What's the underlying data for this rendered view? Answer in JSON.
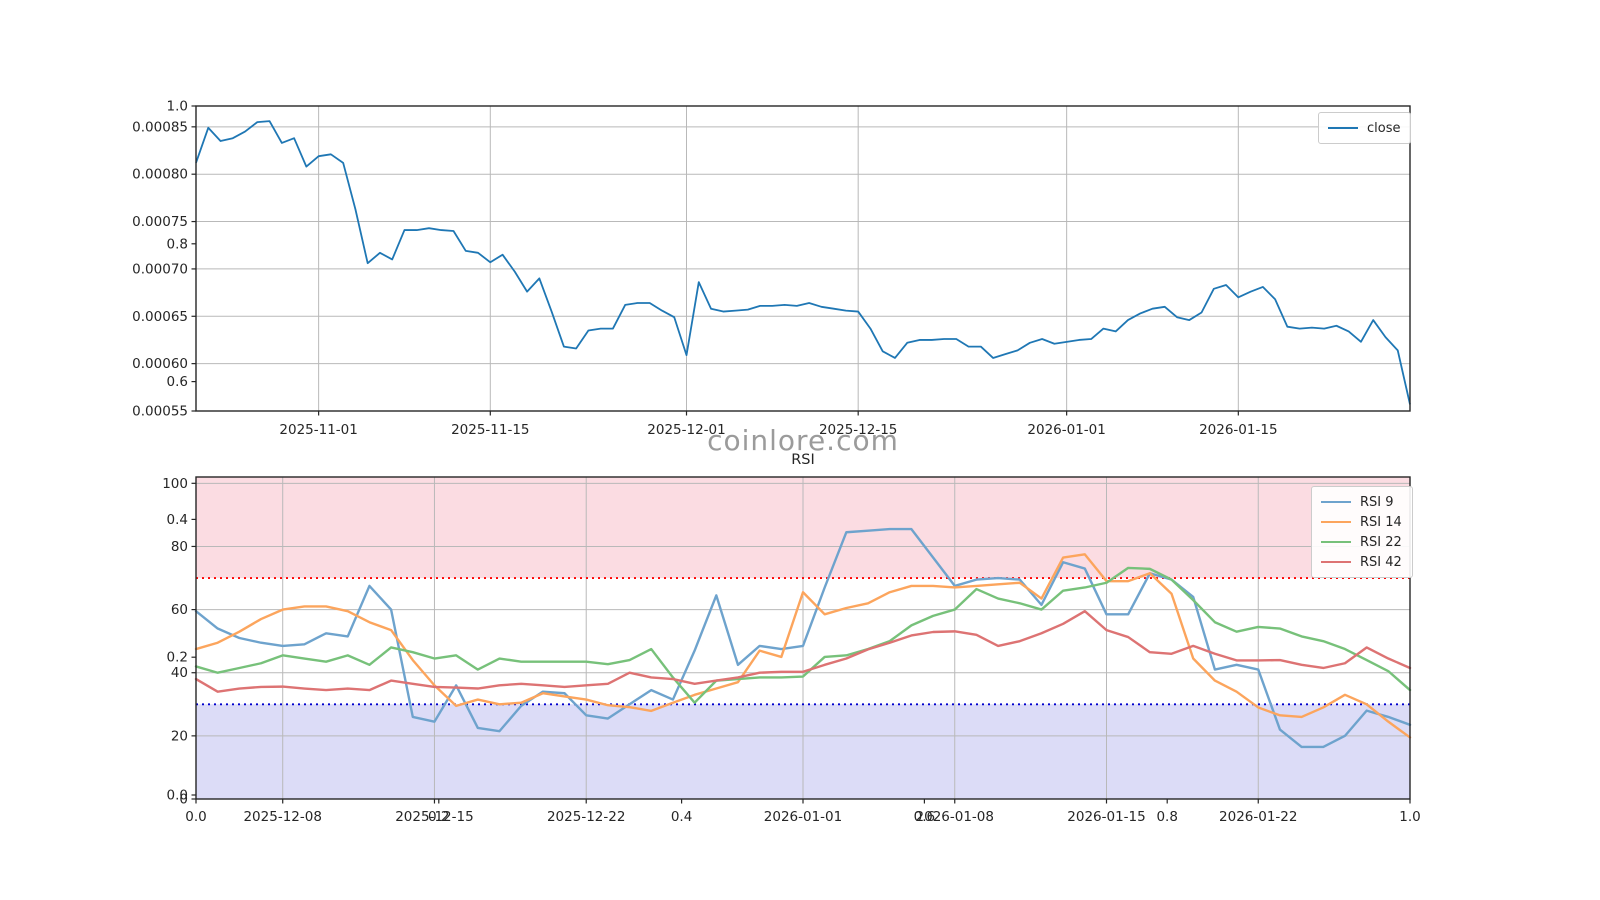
{
  "watermark": "coinlore.com",
  "overlay_axis": {
    "x_tick_labels": [
      "0.0",
      "0.2",
      "0.4",
      "0.6",
      "0.8",
      "1.0"
    ],
    "y_tick_labels": [
      "1.0",
      "0.8",
      "0.6",
      "0.4",
      "0.2",
      "0.0"
    ]
  },
  "colors": {
    "price_line": "#1f77b4",
    "rsi9": "#6ea3cd",
    "rsi14": "#fca55d",
    "rsi22": "#77c17a",
    "rsi42": "#dd7373",
    "overbought_band": "#fbdce2",
    "oversold_band": "#dcdcf7",
    "overbought_line": "#ff0000",
    "oversold_line": "#0000cd",
    "grid": "#b9b9b9",
    "spine": "#262626",
    "tick_text": "#262626",
    "watermark_text": "#9b9b9b"
  },
  "chart_data": [
    {
      "id": "price",
      "type": "line",
      "title": "",
      "start_date": "2025-10-22",
      "freq": "daily",
      "ylim": [
        0.00055,
        0.000872
      ],
      "grid": true,
      "legend_position": "upper right",
      "y_ticks": [
        {
          "value": 0.00085,
          "label": "0.00085"
        },
        {
          "value": 0.0008,
          "label": "0.00080"
        },
        {
          "value": 0.00075,
          "label": "0.00075"
        },
        {
          "value": 0.0007,
          "label": "0.00070"
        },
        {
          "value": 0.00065,
          "label": "0.00065"
        },
        {
          "value": 0.0006,
          "label": "0.00060"
        },
        {
          "value": 0.00055,
          "label": "0.00055"
        }
      ],
      "x_ticks": [
        {
          "date": "2025-11-01",
          "label": "2025-11-01"
        },
        {
          "date": "2025-11-15",
          "label": "2025-11-15"
        },
        {
          "date": "2025-12-01",
          "label": "2025-12-01"
        },
        {
          "date": "2025-12-15",
          "label": "2025-12-15"
        },
        {
          "date": "2026-01-01",
          "label": "2026-01-01"
        },
        {
          "date": "2026-01-15",
          "label": "2026-01-15"
        }
      ],
      "series": [
        {
          "name": "close",
          "color": "#1f77b4",
          "width": 1.8,
          "values": [
            0.000812,
            0.000849,
            0.000835,
            0.000838,
            0.000845,
            0.000855,
            0.000856,
            0.000833,
            0.000838,
            0.000808,
            0.000819,
            0.000821,
            0.000812,
            0.000763,
            0.000706,
            0.000717,
            0.00071,
            0.000741,
            0.000741,
            0.000743,
            0.000741,
            0.00074,
            0.000719,
            0.000717,
            0.000707,
            0.000715,
            0.000697,
            0.000676,
            0.00069,
            0.000655,
            0.000618,
            0.000616,
            0.000635,
            0.000637,
            0.000637,
            0.000662,
            0.000664,
            0.000664,
            0.000656,
            0.000649,
            0.000609,
            0.000686,
            0.000658,
            0.000655,
            0.000656,
            0.000657,
            0.000661,
            0.000661,
            0.000662,
            0.000661,
            0.000664,
            0.00066,
            0.000658,
            0.000656,
            0.000655,
            0.000637,
            0.000613,
            0.000606,
            0.000622,
            0.000625,
            0.000625,
            0.000626,
            0.000626,
            0.000618,
            0.000618,
            0.000606,
            0.00061,
            0.000614,
            0.000622,
            0.000626,
            0.000621,
            0.000623,
            0.000625,
            0.000626,
            0.000637,
            0.000634,
            0.000646,
            0.000653,
            0.000658,
            0.00066,
            0.000649,
            0.000646,
            0.000654,
            0.000679,
            0.000683,
            0.00067,
            0.000676,
            0.000681,
            0.000668,
            0.000639,
            0.000637,
            0.000638,
            0.000637,
            0.00064,
            0.000634,
            0.000623,
            0.000646,
            0.000628,
            0.000614,
            0.000557
          ]
        }
      ]
    },
    {
      "id": "rsi",
      "type": "line",
      "title": "RSI",
      "start_date": "2025-12-04",
      "freq": "daily",
      "ylim": [
        0,
        102
      ],
      "grid": true,
      "legend_position": "upper right",
      "y_ticks": [
        {
          "value": 100,
          "label": "100"
        },
        {
          "value": 80,
          "label": "80"
        },
        {
          "value": 60,
          "label": "60"
        },
        {
          "value": 40,
          "label": "40"
        },
        {
          "value": 20,
          "label": "20"
        },
        {
          "value": 0,
          "label": "0"
        }
      ],
      "x_ticks": [
        {
          "date": "2025-12-08",
          "label": "2025-12-08"
        },
        {
          "date": "2025-12-15",
          "label": "2025-12-15"
        },
        {
          "date": "2025-12-22",
          "label": "2025-12-22"
        },
        {
          "date": "2026-01-01",
          "label": "2026-01-01"
        },
        {
          "date": "2026-01-08",
          "label": "2026-01-08"
        },
        {
          "date": "2026-01-15",
          "label": "2026-01-15"
        },
        {
          "date": "2026-01-22",
          "label": "2026-01-22"
        }
      ],
      "bands": [
        {
          "name": "overbought-band",
          "from": 70,
          "to": 102,
          "color": "#fbdce2"
        },
        {
          "name": "oversold-band",
          "from": 0,
          "to": 30,
          "color": "#dcdcf7"
        }
      ],
      "threshold_lines": [
        {
          "name": "overbought-threshold",
          "value": 70,
          "color": "#ff0000"
        },
        {
          "name": "oversold-threshold",
          "value": 30,
          "color": "#0000cd"
        }
      ],
      "series": [
        {
          "name": "RSI 9",
          "color": "#6ea3cd",
          "width": 2.4,
          "values": [
            59.5,
            54,
            51,
            49.5,
            48.5,
            49,
            52.5,
            51.5,
            67.5,
            60,
            26,
            24.5,
            36,
            22.5,
            21.5,
            29.5,
            34,
            33.5,
            26.5,
            25.5,
            30,
            34.5,
            31.5,
            47,
            64.5,
            42.5,
            48.5,
            47.5,
            48.5,
            67,
            84.5,
            85,
            85.5,
            85.5,
            76.5,
            67.5,
            69.5,
            70,
            69.5,
            61.5,
            75,
            73,
            58.5,
            58.5,
            71.5,
            69.5,
            64,
            41,
            42.5,
            41,
            22,
            16.5,
            16.5,
            20,
            28,
            26,
            23.5
          ]
        },
        {
          "name": "RSI 14",
          "color": "#fca55d",
          "width": 2.4,
          "values": [
            47.5,
            49.5,
            53,
            57,
            60,
            61,
            61,
            59.5,
            56,
            53.5,
            44,
            36,
            29.5,
            31.5,
            30,
            30.5,
            33.5,
            32.5,
            31.5,
            29.7,
            29.1,
            27.9,
            30.5,
            33,
            35,
            37,
            47,
            45,
            65.5,
            58.5,
            60.5,
            62,
            65.5,
            67.5,
            67.5,
            67,
            67.5,
            68,
            68.5,
            63.5,
            76.5,
            77.5,
            69,
            69,
            71.5,
            65,
            44.5,
            37.5,
            34,
            29,
            26.5,
            26,
            29,
            33,
            30,
            24.5,
            19.5
          ]
        },
        {
          "name": "RSI 22",
          "color": "#77c17a",
          "width": 2.4,
          "values": [
            42,
            40,
            41.5,
            43,
            45.5,
            44.5,
            43.5,
            45.5,
            42.5,
            48,
            46.5,
            44.5,
            45.5,
            41,
            44.5,
            43.5,
            43.5,
            43.5,
            43.5,
            42.7,
            44,
            47.5,
            38.5,
            30.5,
            37.5,
            38,
            38.5,
            38.5,
            38.8,
            45,
            45.5,
            47.5,
            50,
            55,
            58,
            60,
            66.5,
            63.5,
            62,
            60,
            66,
            67,
            68.5,
            73.2,
            72.9,
            69.5,
            63,
            56,
            53,
            54.5,
            54,
            51.5,
            50,
            47.5,
            44,
            40.5,
            34.5
          ]
        },
        {
          "name": "RSI 42",
          "color": "#dd7373",
          "width": 2.4,
          "values": [
            38,
            34,
            35,
            35.5,
            35.6,
            35,
            34.5,
            35,
            34.5,
            37.5,
            36.5,
            35.5,
            35.3,
            35,
            36,
            36.5,
            36,
            35.5,
            36,
            36.5,
            40,
            38.5,
            38,
            36.5,
            37.5,
            38.5,
            40,
            40.3,
            40.3,
            42.5,
            44.5,
            47.4,
            49.5,
            51.8,
            52.9,
            53.1,
            52,
            48.5,
            50,
            52.5,
            55.5,
            59.5,
            53.5,
            51.3,
            46.5,
            46,
            48.5,
            46,
            43.9,
            43.9,
            44,
            42.5,
            41.5,
            43,
            48,
            44.5,
            41.5
          ]
        }
      ]
    }
  ]
}
